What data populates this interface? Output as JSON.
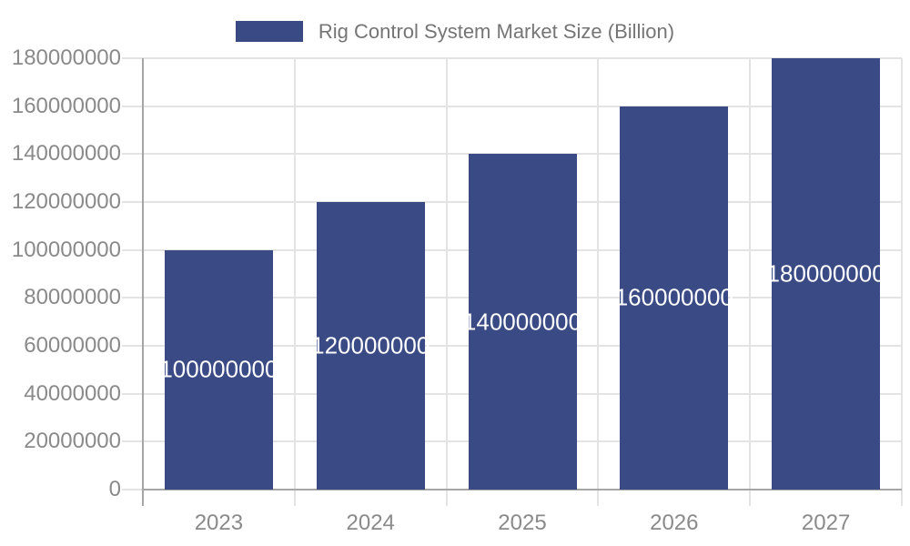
{
  "chart_data": {
    "type": "bar",
    "title": "Rig Control System Market Size (Billion)",
    "categories": [
      "2023",
      "2024",
      "2025",
      "2026",
      "2027"
    ],
    "values": [
      100000000,
      120000000,
      140000000,
      160000000,
      180000000
    ],
    "bar_labels": [
      "100000000",
      "120000000",
      "140000000",
      "160000000",
      "180000000"
    ],
    "xlabel": "",
    "ylabel": "",
    "ylim": [
      0,
      180000000
    ],
    "ytick_step": 20000000,
    "yticks": [
      0,
      20000000,
      40000000,
      60000000,
      80000000,
      100000000,
      120000000,
      140000000,
      160000000,
      180000000
    ],
    "ytick_labels": [
      "0",
      "20000000",
      "40000000",
      "60000000",
      "80000000",
      "100000000",
      "120000000",
      "140000000",
      "160000000",
      "180000000"
    ],
    "grid": true,
    "legend_position": "top-center",
    "colors": {
      "bar": "#3a4a84",
      "grid": "#e3e3e3",
      "axis": "#a6a6a6",
      "tick_label": "#8a8a8a",
      "bar_label": "#ffffff",
      "legend_text": "#757575",
      "background": "#ffffff"
    }
  }
}
